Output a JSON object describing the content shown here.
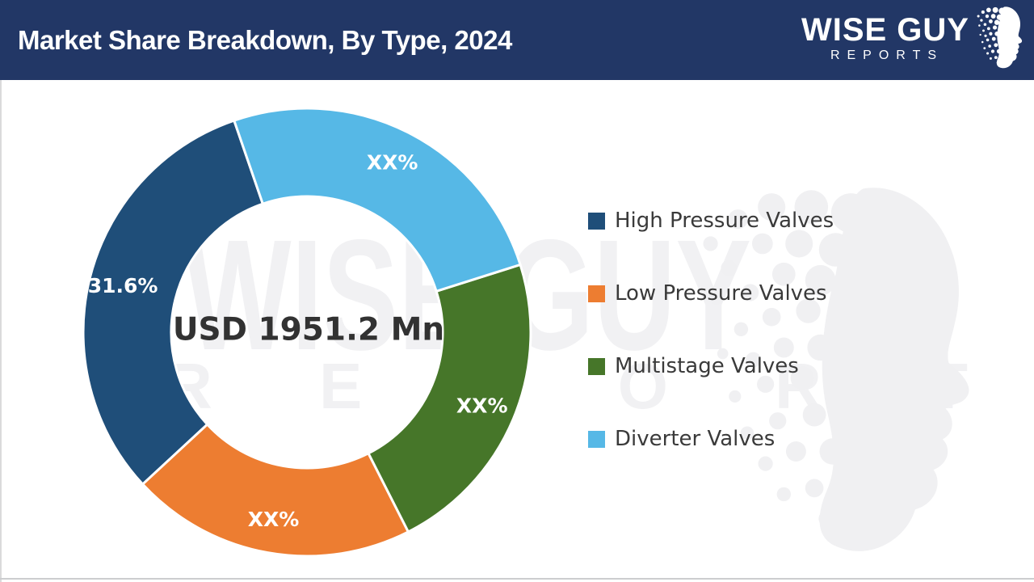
{
  "header": {
    "title": "Market Share Breakdown, By Type, 2024",
    "logo": {
      "wordmark": "WISE GUY",
      "subtitle": "REPORTS"
    }
  },
  "watermark": {
    "wordmark": "WISE GUY",
    "subtitle": "R E P O R T S"
  },
  "chart_data": {
    "type": "pie",
    "subtype": "donut",
    "title": "Market Share Breakdown, By Type, 2024",
    "center_label": "USD 1951.2 Mn",
    "start_angle_deg": 109,
    "direction": "counterclockwise",
    "legend_position": "right",
    "segments": [
      {
        "label": "High Pressure Valves",
        "display_value": "31.6%",
        "share_pct": 31.6,
        "color": "#1F4E79"
      },
      {
        "label": "Low Pressure Valves",
        "display_value": "XX%",
        "share_pct": 20.6,
        "color": "#ED7D31"
      },
      {
        "label": "Multistage Valves",
        "display_value": "XX%",
        "share_pct": 22.4,
        "color": "#467629"
      },
      {
        "label": "Diverter Valves",
        "display_value": "XX%",
        "share_pct": 25.4,
        "color": "#56B8E6"
      }
    ]
  },
  "colors": {
    "header_bg": "#223766",
    "center_text": "#323232",
    "legend_text": "#3A3A3A",
    "watermark": "#F1F1F3",
    "slice_border": "#FFFFFF"
  }
}
